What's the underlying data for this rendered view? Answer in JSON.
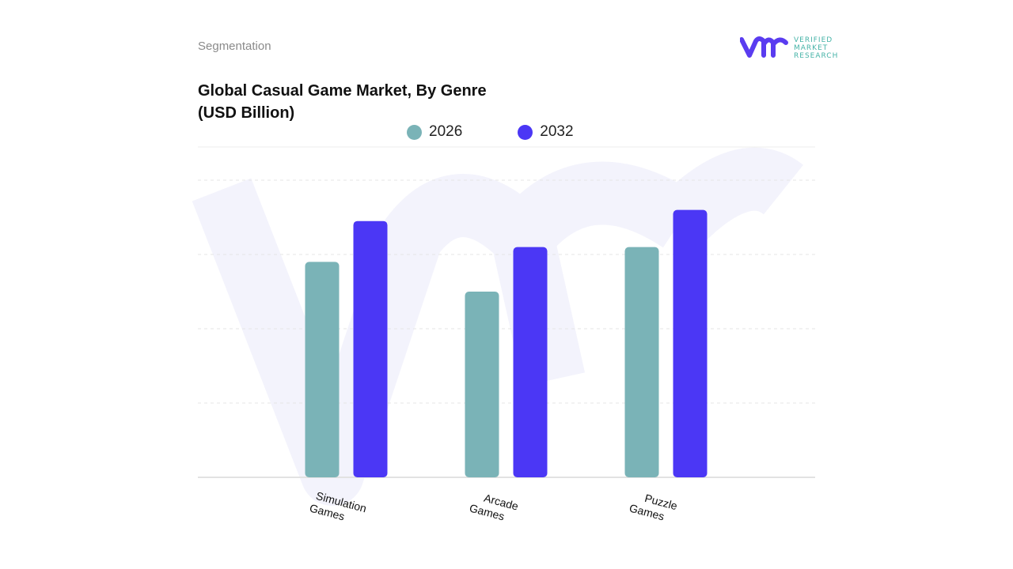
{
  "header": {
    "section": "Segmentation",
    "logo_text": [
      "VERIFIED",
      "MARKET",
      "RESEARCH"
    ]
  },
  "chart_data": {
    "type": "bar",
    "title": "Global Casual Game Market, By Genre (USD Billion)",
    "title_lines": [
      "Global Casual Game Market, By Genre",
      "(USD Billion)"
    ],
    "categories": [
      "Simulation Games",
      "Arcade Games",
      "Puzzle Games"
    ],
    "category_lines": [
      [
        "Simulation",
        "Games"
      ],
      [
        "Arcade",
        "Games"
      ],
      [
        "Puzzle",
        "Games"
      ]
    ],
    "series": [
      {
        "name": "2026",
        "color": "#7ab3b7",
        "values": [
          2.9,
          2.5,
          3.1
        ]
      },
      {
        "name": "2032",
        "color": "#4b37f5",
        "values": [
          3.45,
          3.1,
          3.6
        ]
      }
    ],
    "ylim": [
      0,
      4.5
    ],
    "y_tick_labels_shown": false,
    "grid": true,
    "legend_position": "top-center",
    "xlabel": "",
    "ylabel": ""
  }
}
